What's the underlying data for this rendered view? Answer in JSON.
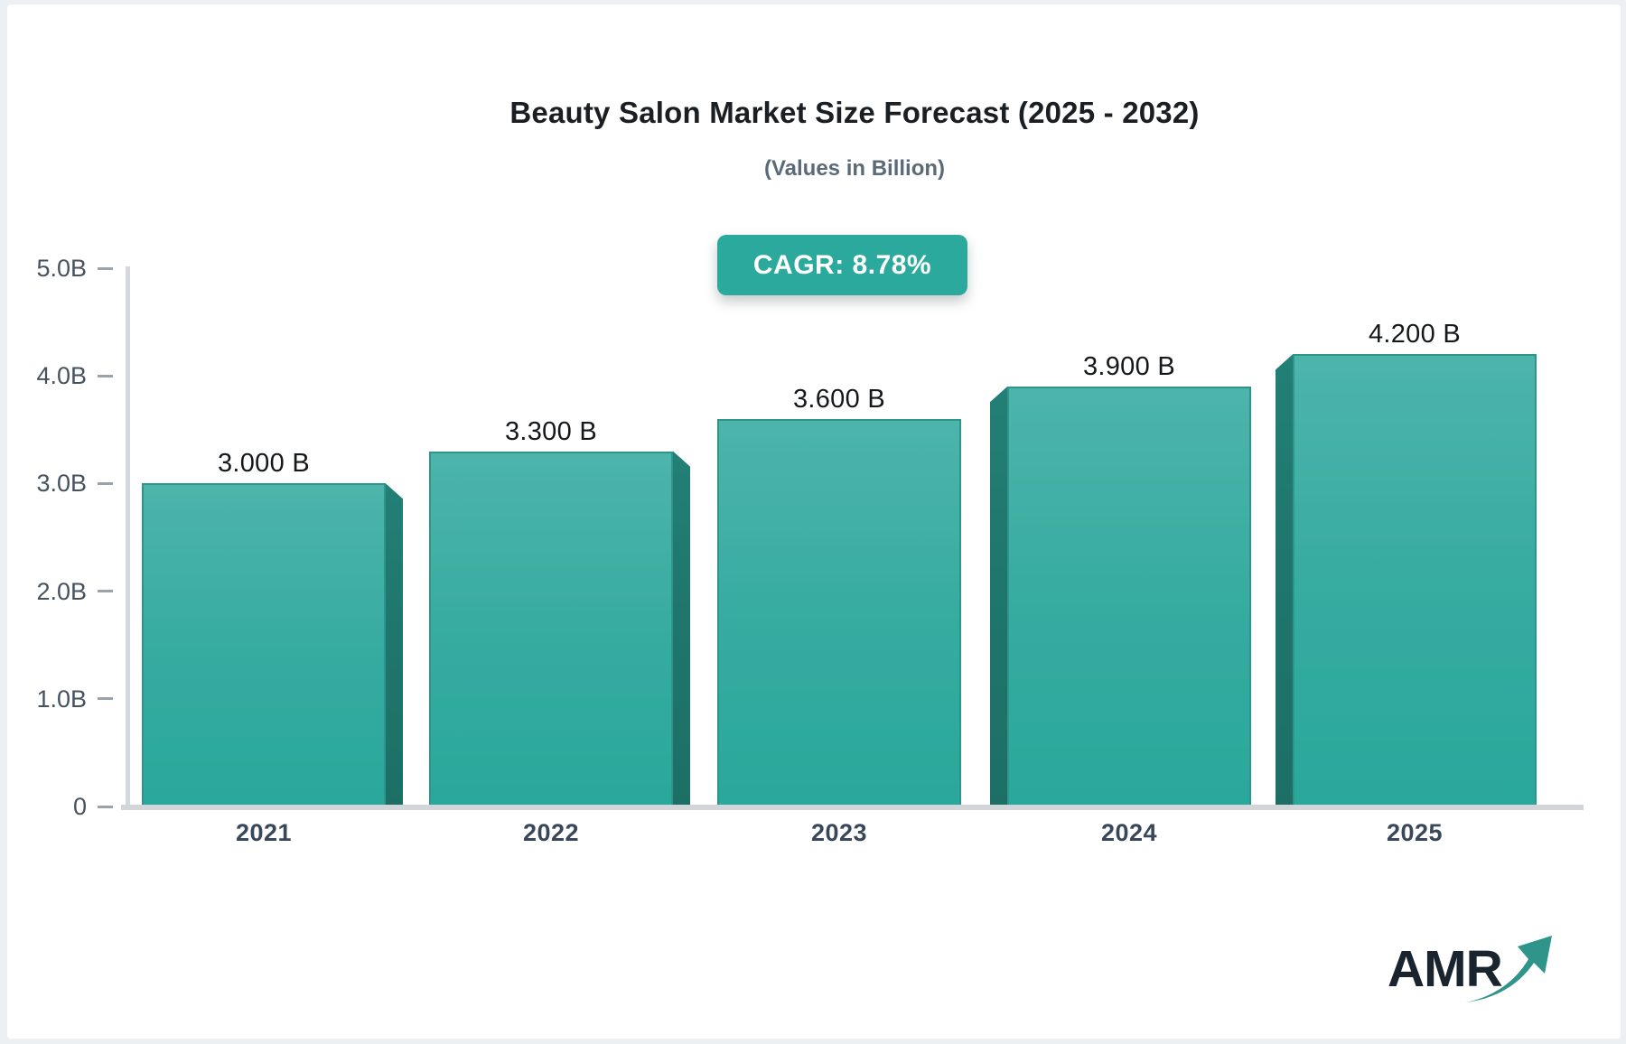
{
  "header": {
    "title": "Beauty Salon Market Size Forecast (2025 - 2032)",
    "subtitle": "(Values in Billion)"
  },
  "cagr_badge": {
    "label": "CAGR: 8.78%"
  },
  "chart_data": {
    "type": "bar",
    "title": "Beauty Salon Market Size Forecast (2025 - 2032)",
    "subtitle": "(Values in Billion)",
    "cagr_label": "CAGR: 8.78%",
    "categories": [
      "2021",
      "2022",
      "2023",
      "2024",
      "2025"
    ],
    "values": [
      3.0,
      3.3,
      3.6,
      3.9,
      4.2
    ],
    "value_labels": [
      "3.000 B",
      "3.300 B",
      "3.600 B",
      "3.900 B",
      "4.200 B"
    ],
    "xlabel": "",
    "ylabel": "",
    "ylim": [
      0,
      5
    ],
    "y_ticks": [
      {
        "label": "5.0B",
        "value": 5.0
      },
      {
        "label": "4.0B",
        "value": 4.0
      },
      {
        "label": "3.0B",
        "value": 3.0
      },
      {
        "label": "2.0B",
        "value": 2.0
      },
      {
        "label": "1.0B",
        "value": 1.0
      },
      {
        "label": "0",
        "value": 0.0
      }
    ],
    "grid": false,
    "legend": false,
    "colors": {
      "bar_top": "#4db4aa",
      "bar_bottom": "#2aa89b",
      "bar_side": "#1f776d",
      "bar_border": "#2e958b",
      "badge_background": "#2aa99c",
      "axis_line": "#d4d7db",
      "tick_text": "#47525f",
      "category_text": "#39475a",
      "value_text": "#15181b"
    }
  },
  "logo": {
    "text": "AMR",
    "arrow_icon": "trending-up-arrow-icon"
  }
}
